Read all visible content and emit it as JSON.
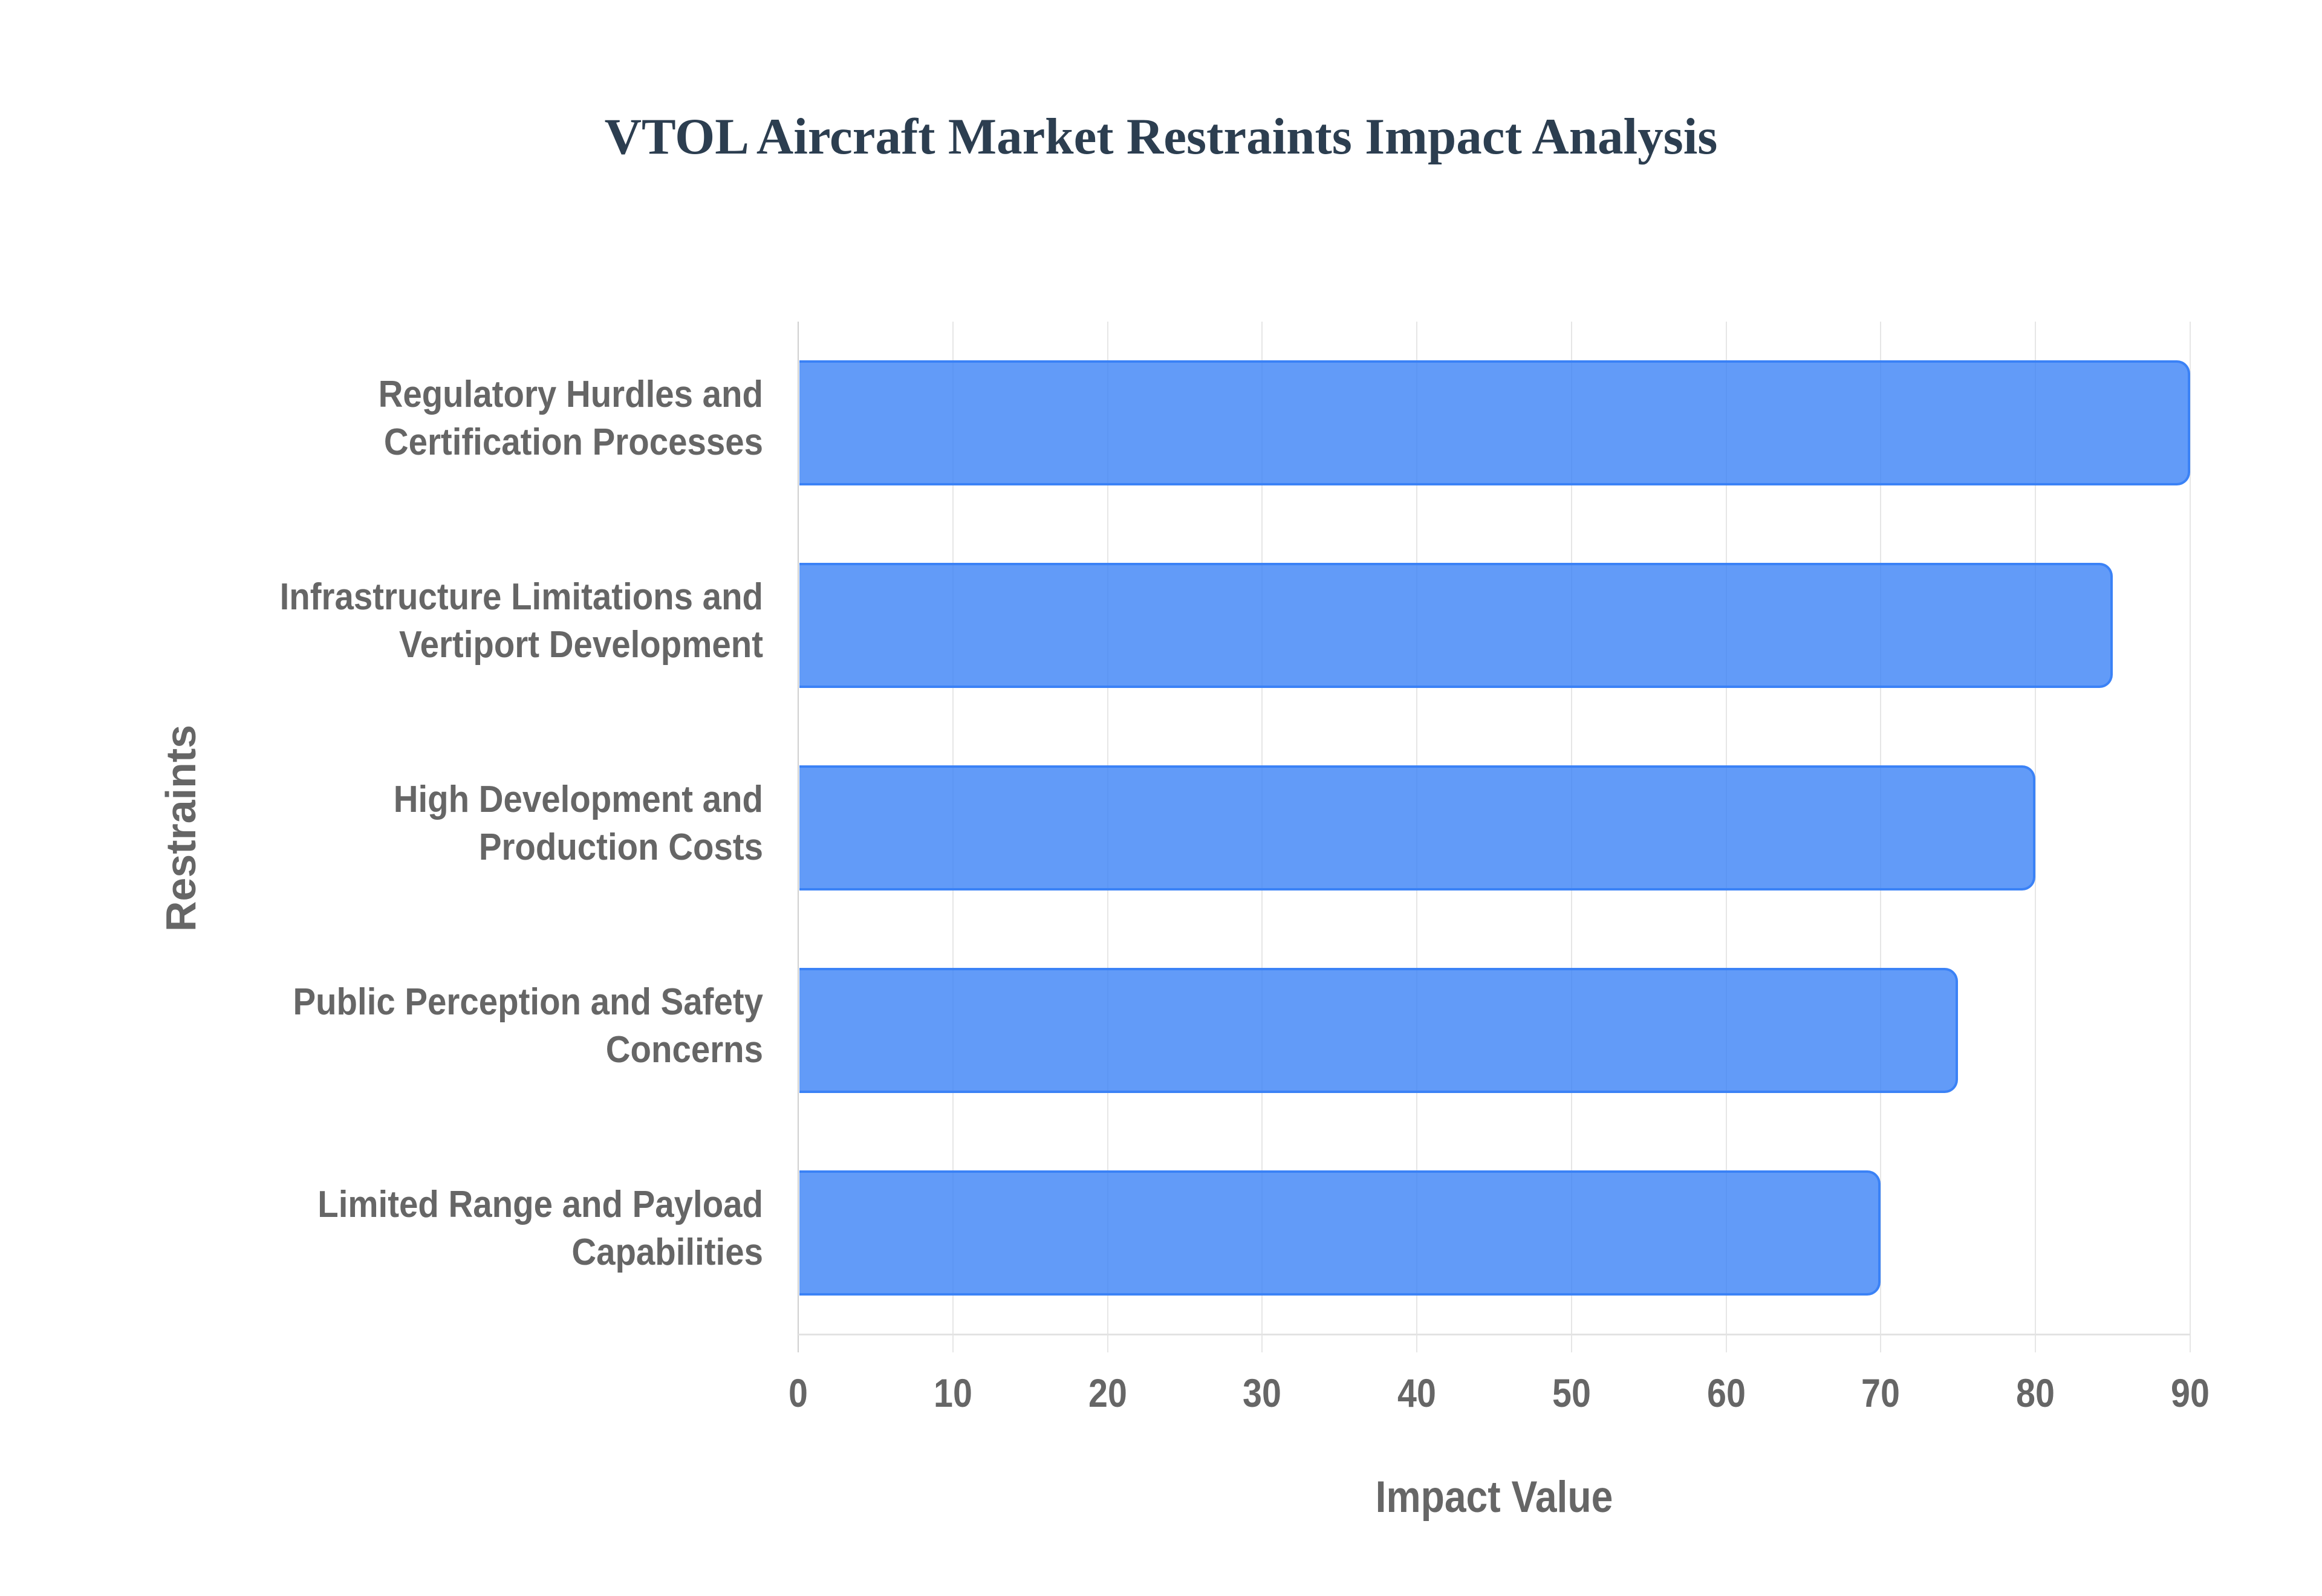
{
  "chart_data": {
    "type": "bar",
    "orientation": "horizontal",
    "title": "VTOL Aircraft Market Restraints Impact Analysis",
    "xlabel": "Impact Value",
    "ylabel": "Restraints",
    "categories": [
      "Regulatory Hurdles and Certification Processes",
      "Infrastructure Limitations and Vertiport Development",
      "High Development and Production Costs",
      "Public Perception and Safety Concerns",
      "Limited Range and Payload Capabilities"
    ],
    "category_lines": [
      [
        "Regulatory Hurdles and",
        "Certification Processes"
      ],
      [
        "Infrastructure Limitations and",
        "Vertiport Development"
      ],
      [
        "High Development and",
        "Production Costs"
      ],
      [
        "Public Perception and Safety",
        "Concerns"
      ],
      [
        "Limited Range and Payload",
        "Capabilities"
      ]
    ],
    "values": [
      90,
      85,
      80,
      75,
      70
    ],
    "series": [
      {
        "name": "Impact Value",
        "values": [
          90,
          85,
          80,
          75,
          70
        ],
        "color": "#3b82f6",
        "fill": "rgba(59,130,246,0.8)"
      }
    ],
    "x_ticks": [
      "0",
      "10",
      "20",
      "30",
      "40",
      "50",
      "60",
      "70",
      "80",
      "90"
    ],
    "xlim": [
      0,
      90
    ],
    "grid": true,
    "legend": "none"
  }
}
